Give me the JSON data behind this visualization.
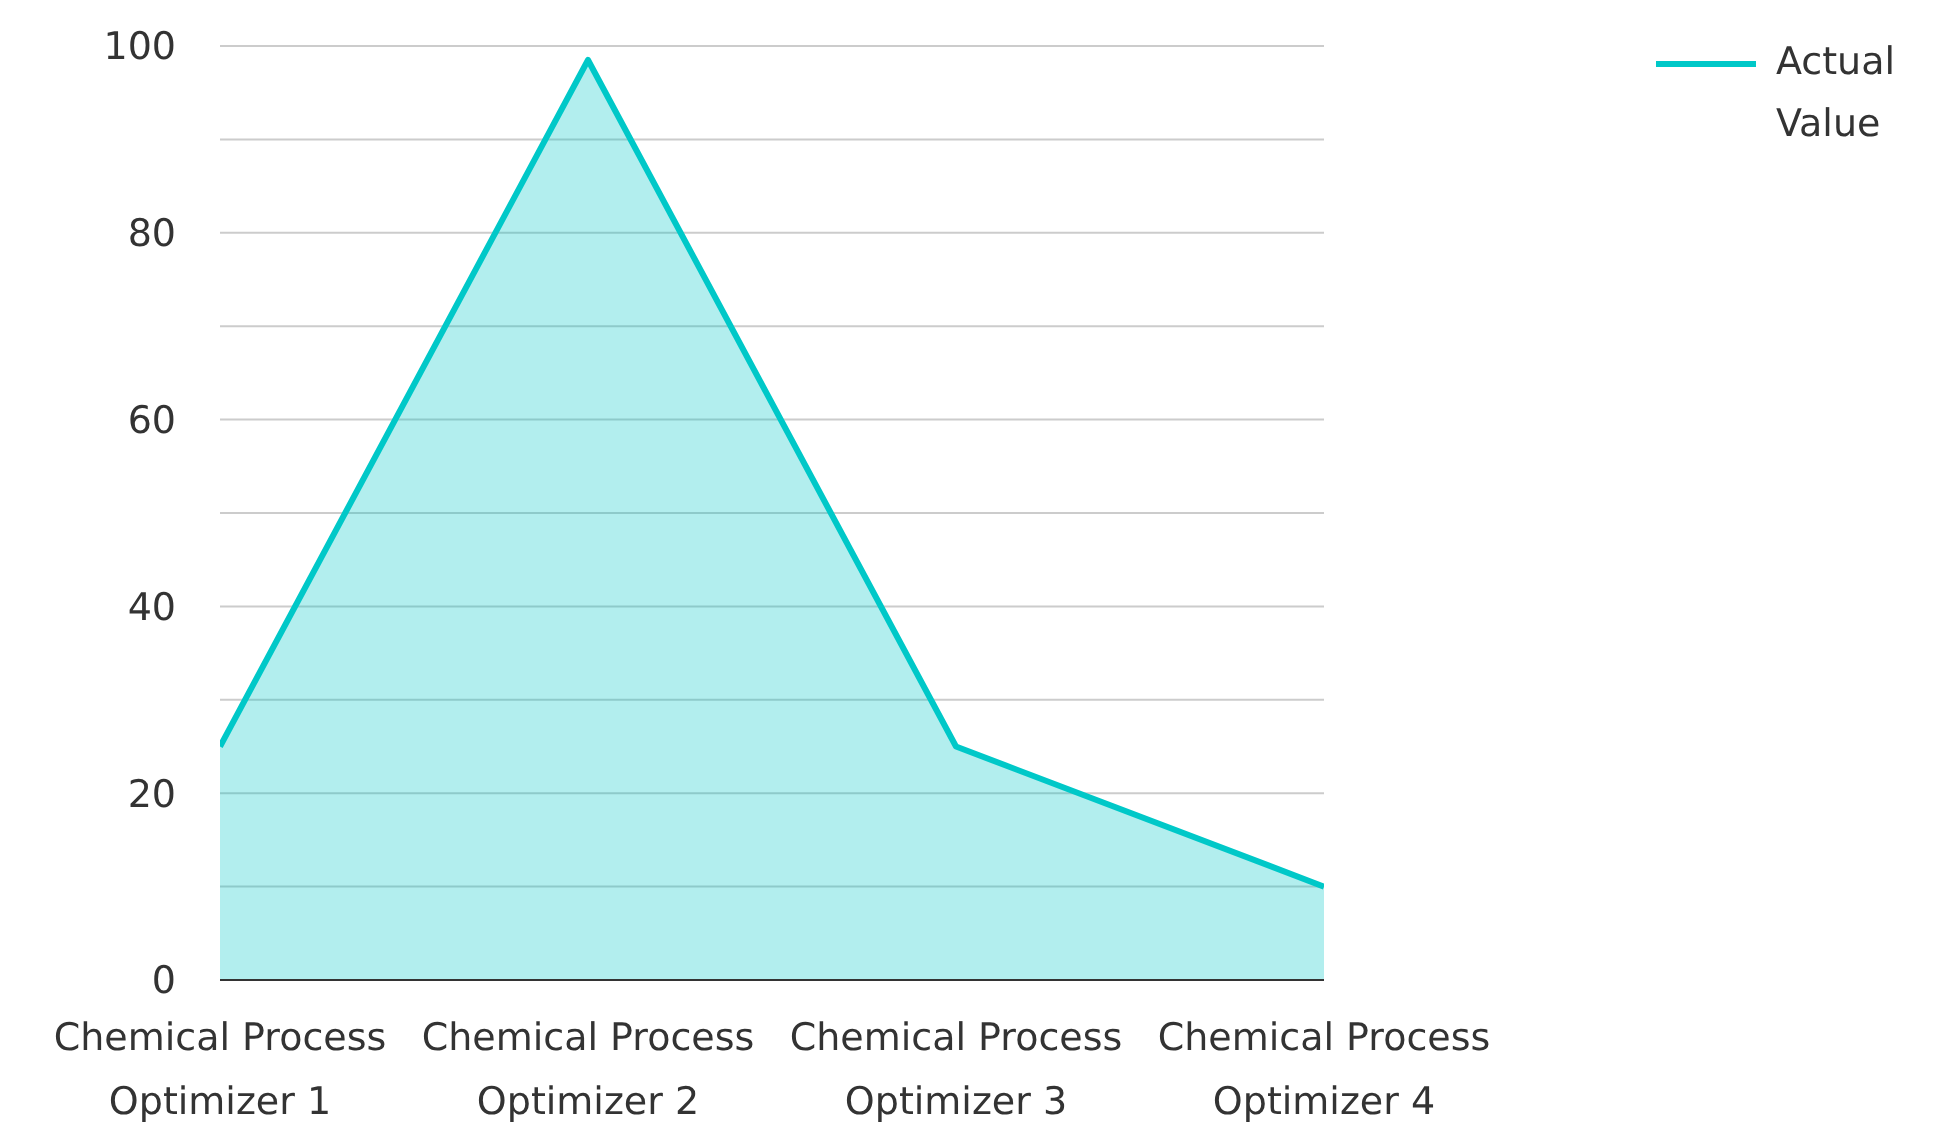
{
  "chart_data": {
    "type": "area",
    "categories": [
      "Chemical Process Optimizer 1",
      "Chemical Process Optimizer 2",
      "Chemical Process Optimizer 3",
      "Chemical Process Optimizer 4"
    ],
    "series": [
      {
        "name": "Actual Value",
        "color": "#00c8c8",
        "values": [
          25,
          98.5,
          25,
          10
        ]
      }
    ],
    "ylim": [
      0,
      100
    ],
    "yticks": [
      0,
      {
        "value": 10,
        "label": null
      },
      20,
      {
        "value": 30,
        "label": null
      },
      40,
      {
        "value": 50,
        "label": null
      },
      60,
      {
        "value": 70,
        "label": null
      },
      80,
      {
        "value": 90,
        "label": null
      },
      100
    ],
    "grid": "y",
    "legend": "top right"
  }
}
